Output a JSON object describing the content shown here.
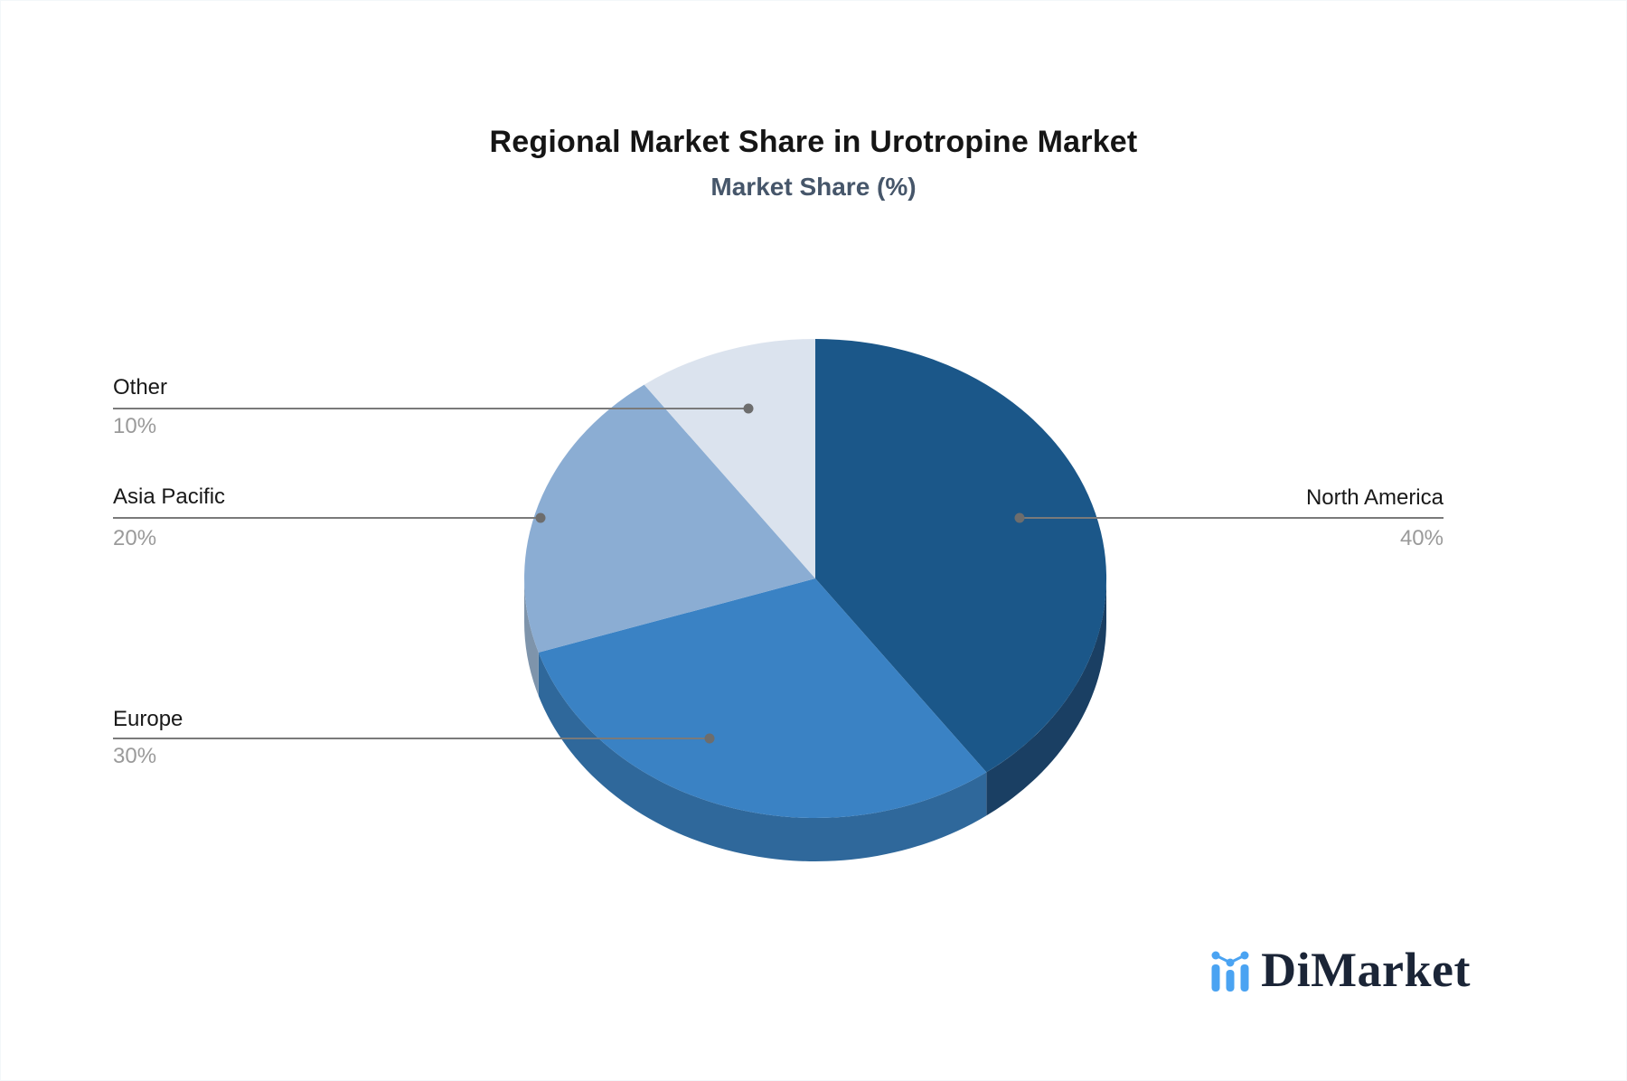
{
  "chart_data": {
    "type": "pie",
    "style": "3d",
    "title": "Regional Market Share in Urotropine Market",
    "subtitle": "Market Share (%)",
    "unit": "%",
    "start_angle": "12-oclock",
    "direction": "clockwise",
    "slices": [
      {
        "label": "North America",
        "value": 40,
        "value_label": "40%",
        "color": "#1b5789",
        "side_color": "#1a3f63"
      },
      {
        "label": "Europe",
        "value": 30,
        "value_label": "30%",
        "color": "#3a82c4",
        "side_color": "#2f689b"
      },
      {
        "label": "Asia Pacific",
        "value": 20,
        "value_label": "20%",
        "color": "#8badd3",
        "side_color": "#7e94ab"
      },
      {
        "label": "Other",
        "value": 10,
        "value_label": "10%",
        "color": "#dbe3ee",
        "side_color": "#c9d4e4"
      }
    ],
    "callout": {
      "line_color": "#7a7a7a",
      "dot_color": "#6d6d6d"
    },
    "label_color": "#191919",
    "value_color": "#9a9a9a"
  },
  "branding": {
    "name": "DiMarket",
    "icon": "bar-line-chart-icon",
    "text_color": "#1b2537",
    "accent_color": "#4aa3f2"
  }
}
